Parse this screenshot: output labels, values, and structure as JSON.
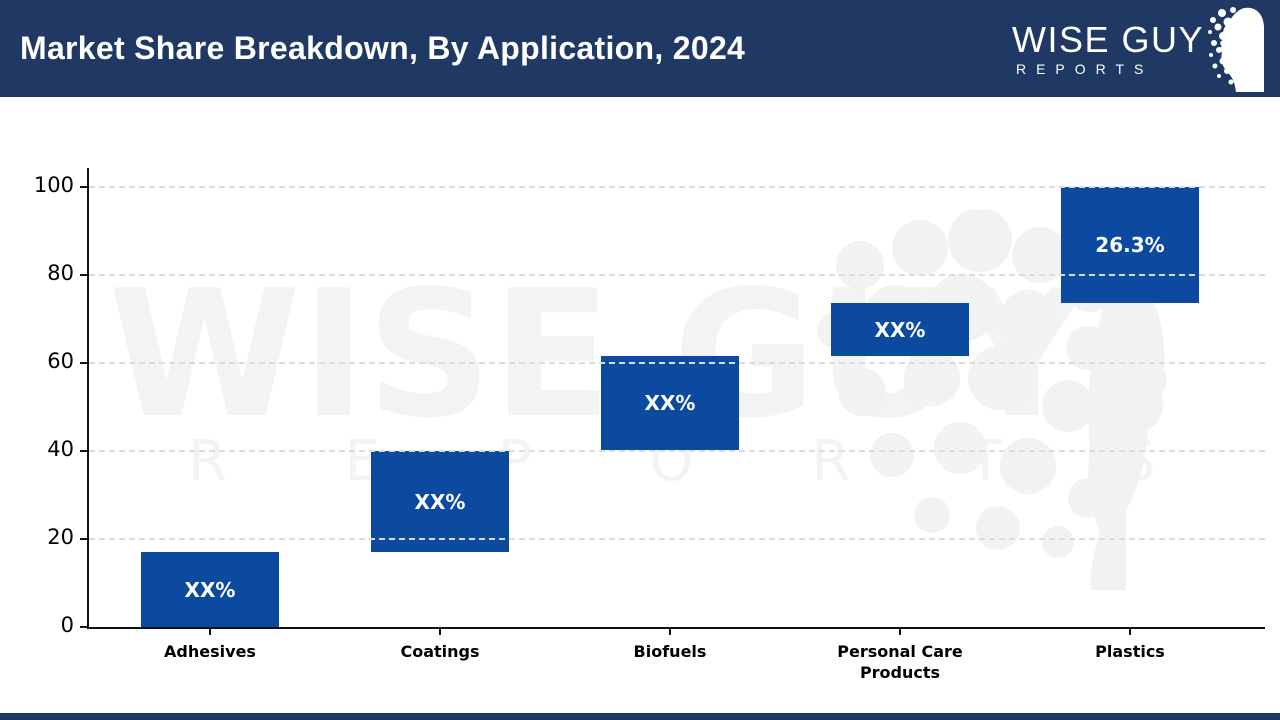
{
  "header": {
    "title": "Market Share Breakdown, By Application, 2024",
    "bg_color": "#1f3864",
    "logo_line1": "WISE GUY",
    "logo_line2": "REPORTS"
  },
  "watermark": {
    "line1": "WISE GUY",
    "line2": "R E P O R T S"
  },
  "chart_data": {
    "type": "bar",
    "subtype": "waterfall",
    "title": "Market Share Breakdown, By Application, 2024",
    "categories": [
      "Adhesives",
      "Coatings",
      "Biofuels",
      "Personal Care Products",
      "Plastics"
    ],
    "segments": [
      {
        "category": "Adhesives",
        "start": 0,
        "end": 17,
        "label": "XX%"
      },
      {
        "category": "Coatings",
        "start": 17,
        "end": 40,
        "label": "XX%"
      },
      {
        "category": "Biofuels",
        "start": 40.2,
        "end": 61.6,
        "label": "XX%"
      },
      {
        "category": "Personal Care Products",
        "start": 61.6,
        "end": 73.6,
        "label": "XX%"
      },
      {
        "category": "Plastics",
        "start": 73.7,
        "end": 100,
        "label": "26.3%"
      }
    ],
    "yticks": [
      0,
      20,
      40,
      60,
      80,
      100
    ],
    "ylim": [
      0,
      104
    ],
    "xlabel": "",
    "ylabel": "",
    "grid": "horizontal-dashed",
    "legend": "none",
    "bar_color": "#0b4a9e",
    "bar_label_color": "#ffffff",
    "axis_color": "#111111",
    "gridline_color": "#dcdcdc"
  }
}
